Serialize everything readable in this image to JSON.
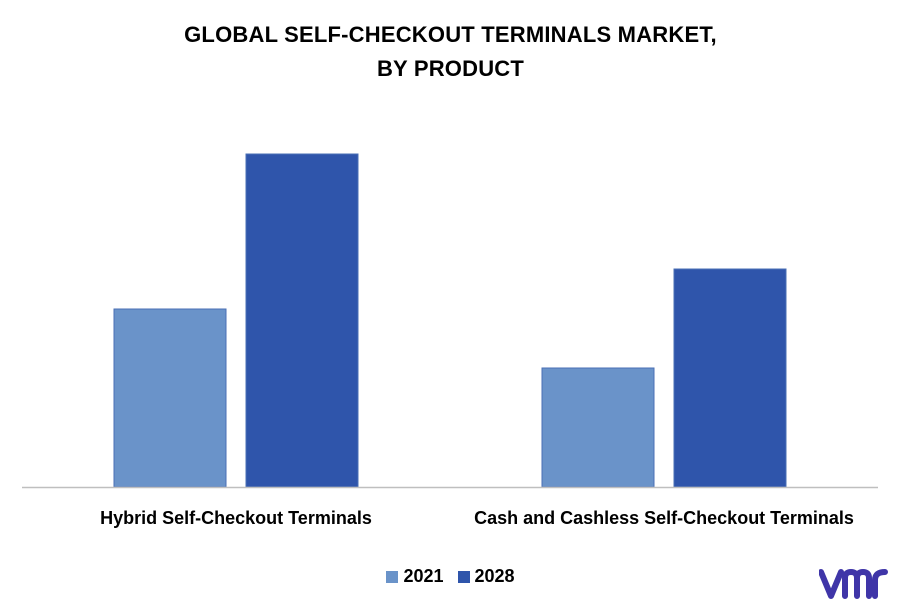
{
  "chart_data": {
    "type": "bar",
    "title_lines": [
      "GLOBAL SELF-CHECKOUT TERMINALS MARKET,",
      "BY PRODUCT"
    ],
    "categories": [
      "Hybrid Self-Checkout Terminals",
      "Cash and Cashless Self-Checkout Terminals"
    ],
    "series": [
      {
        "name": "2021",
        "values": [
          178,
          119
        ],
        "color": "#6a93c9"
      },
      {
        "name": "2028",
        "values": [
          333,
          218
        ],
        "color": "#2f55ab"
      }
    ],
    "ylim": [
      0,
      360
    ],
    "grid": false,
    "legend_position": "bottom",
    "xlabel": "",
    "ylabel": ""
  },
  "colors": {
    "axis": "#bfbfbf",
    "logo": "#3f35a8"
  },
  "logo": {
    "icon": "vmr-logo"
  }
}
